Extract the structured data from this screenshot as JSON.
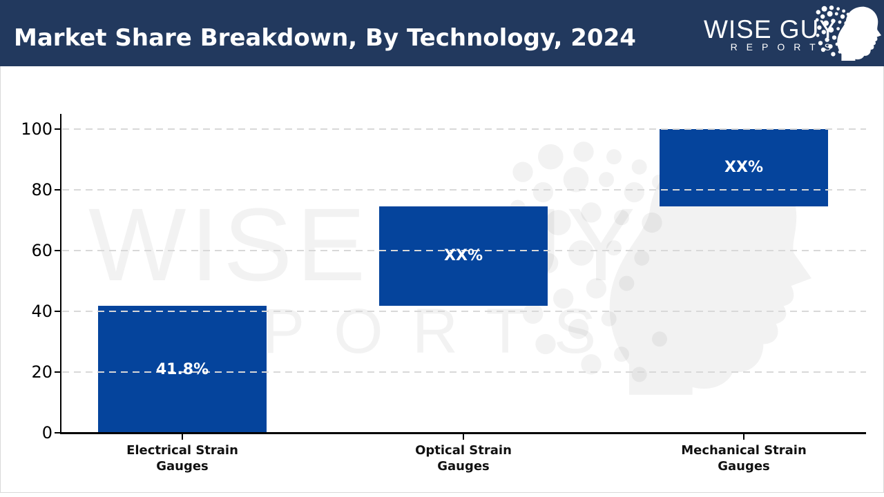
{
  "header": {
    "title": "Market Share Breakdown, By Technology, 2024",
    "logo": {
      "primary": "WISE GUY",
      "secondary": "REPORTS"
    }
  },
  "watermark": {
    "primary": "WISE GUY",
    "secondary": "REPORTS"
  },
  "colors": {
    "header_bg": "#22395e",
    "bar": "#05449c",
    "grid": "#d8d8d8",
    "axis": "#000000",
    "bar_label_text": "#ffffff",
    "frame_border": "#d9d9d9"
  },
  "chart_data": {
    "type": "bar",
    "subtype": "waterfall-cumulative",
    "title": "Market Share Breakdown, By Technology, 2024",
    "categories": [
      "Electrical Strain\nGauges",
      "Optical Strain\nGauges",
      "Mechanical Strain\nGauges"
    ],
    "series": [
      {
        "name": "Electrical Strain Gauges",
        "start": 0,
        "end": 41.8,
        "label": "41.8%"
      },
      {
        "name": "Optical Strain Gauges",
        "start": 41.8,
        "end": 74.6,
        "label": "XX%"
      },
      {
        "name": "Mechanical Strain Gauges",
        "start": 74.6,
        "end": 100,
        "label": "XX%"
      }
    ],
    "xlabel": "",
    "ylabel": "",
    "ylim": [
      0,
      100
    ],
    "yticks": [
      0,
      20,
      40,
      60,
      80,
      100
    ],
    "grid": {
      "axis": "y",
      "style": "dashed",
      "drawn_over_bars": true
    },
    "legend": null
  }
}
